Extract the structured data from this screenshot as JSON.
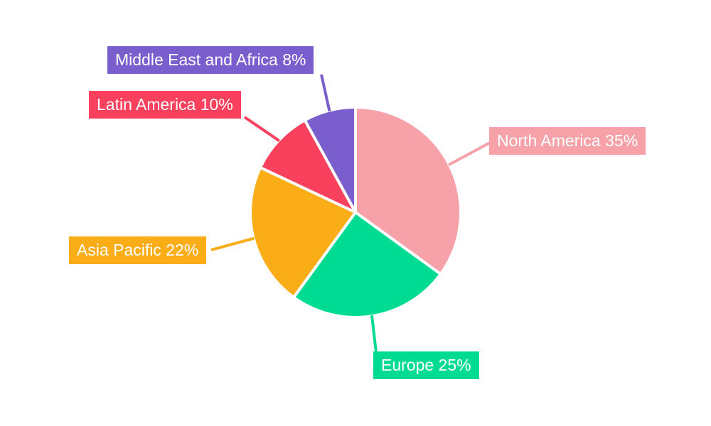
{
  "chart_data": {
    "type": "pie",
    "start_angle_deg": 0,
    "direction": "clockwise",
    "background": "#ffffff",
    "label_text_color": "#ffffff",
    "legend_position": "none",
    "slices": [
      {
        "label": "North America",
        "value": 35,
        "percent": "35%",
        "label_text": "North America 35%",
        "color": "#f7a1a8"
      },
      {
        "label": "Europe",
        "value": 25,
        "percent": "25%",
        "label_text": "Europe 25%",
        "color": "#00db93"
      },
      {
        "label": "Asia Pacific",
        "value": 22,
        "percent": "22%",
        "label_text": "Asia Pacific 22%",
        "color": "#fbad17"
      },
      {
        "label": "Latin America",
        "value": 10,
        "percent": "10%",
        "label_text": "Latin America 10%",
        "color": "#f9415e"
      },
      {
        "label": "Middle East and Africa",
        "value": 8,
        "percent": "8%",
        "label_text": "Middle East and Africa 8%",
        "color": "#7a5ece"
      }
    ]
  }
}
